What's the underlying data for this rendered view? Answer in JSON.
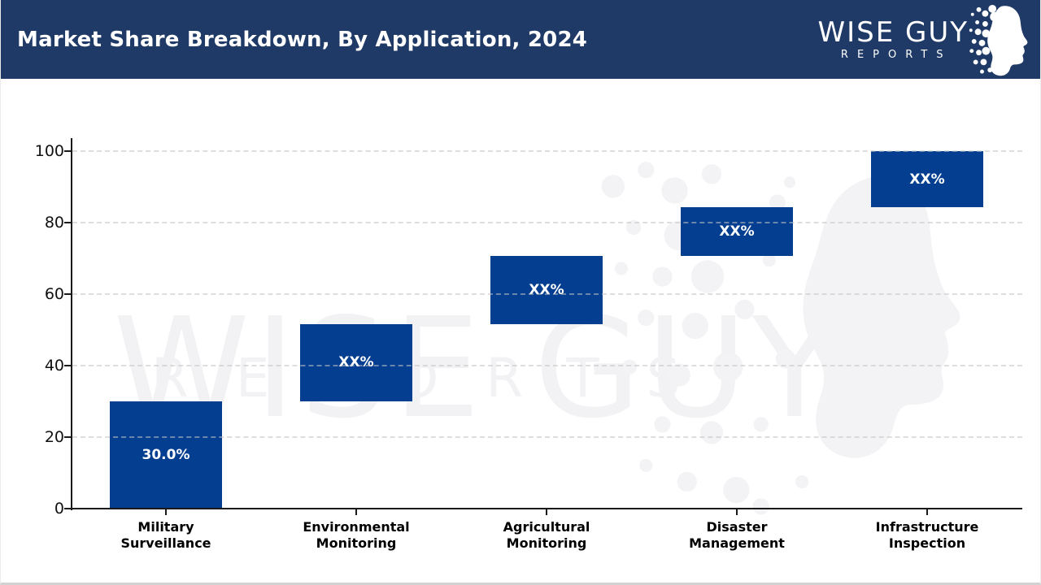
{
  "header": {
    "title": "Market Share Breakdown, By Application, 2024",
    "logo": {
      "line1": "WISE GUY",
      "line2": "REPORTS"
    }
  },
  "watermark": {
    "line1": "WISE GUY",
    "line2": "REPORTS"
  },
  "colors": {
    "header_bg": "#1f3a66",
    "bar": "#043e91",
    "bar_label": "#ffffff",
    "grid": "#dcdcdc",
    "axis": "#1a1a1a",
    "watermark": "#f2f2f4"
  },
  "chart_data": {
    "type": "bar",
    "subtype": "waterfall",
    "title": "Market Share Breakdown, By Application, 2024",
    "categories": [
      "Military Surveillance",
      "Environmental Monitoring",
      "Agricultural Monitoring",
      "Disaster Management",
      "Infrastructure Inspection"
    ],
    "segments": [
      {
        "category": "Military Surveillance",
        "start": 0,
        "end": 30,
        "label": "30.0%"
      },
      {
        "category": "Environmental Monitoring",
        "start": 30,
        "end": 51.6,
        "label": "XX%"
      },
      {
        "category": "Agricultural Monitoring",
        "start": 51.6,
        "end": 70.7,
        "label": "XX%"
      },
      {
        "category": "Disaster Management",
        "start": 70.7,
        "end": 84.3,
        "label": "XX%"
      },
      {
        "category": "Infrastructure Inspection",
        "start": 84.3,
        "end": 100,
        "label": "XX%"
      }
    ],
    "xlabel": "",
    "ylabel": "",
    "ylim": [
      0,
      100
    ],
    "yticks": [
      0,
      20,
      40,
      60,
      80,
      100
    ],
    "grid": "horizontal-dashed",
    "legend": "none",
    "bar_color": "#043e91",
    "label_color": "#ffffff"
  }
}
